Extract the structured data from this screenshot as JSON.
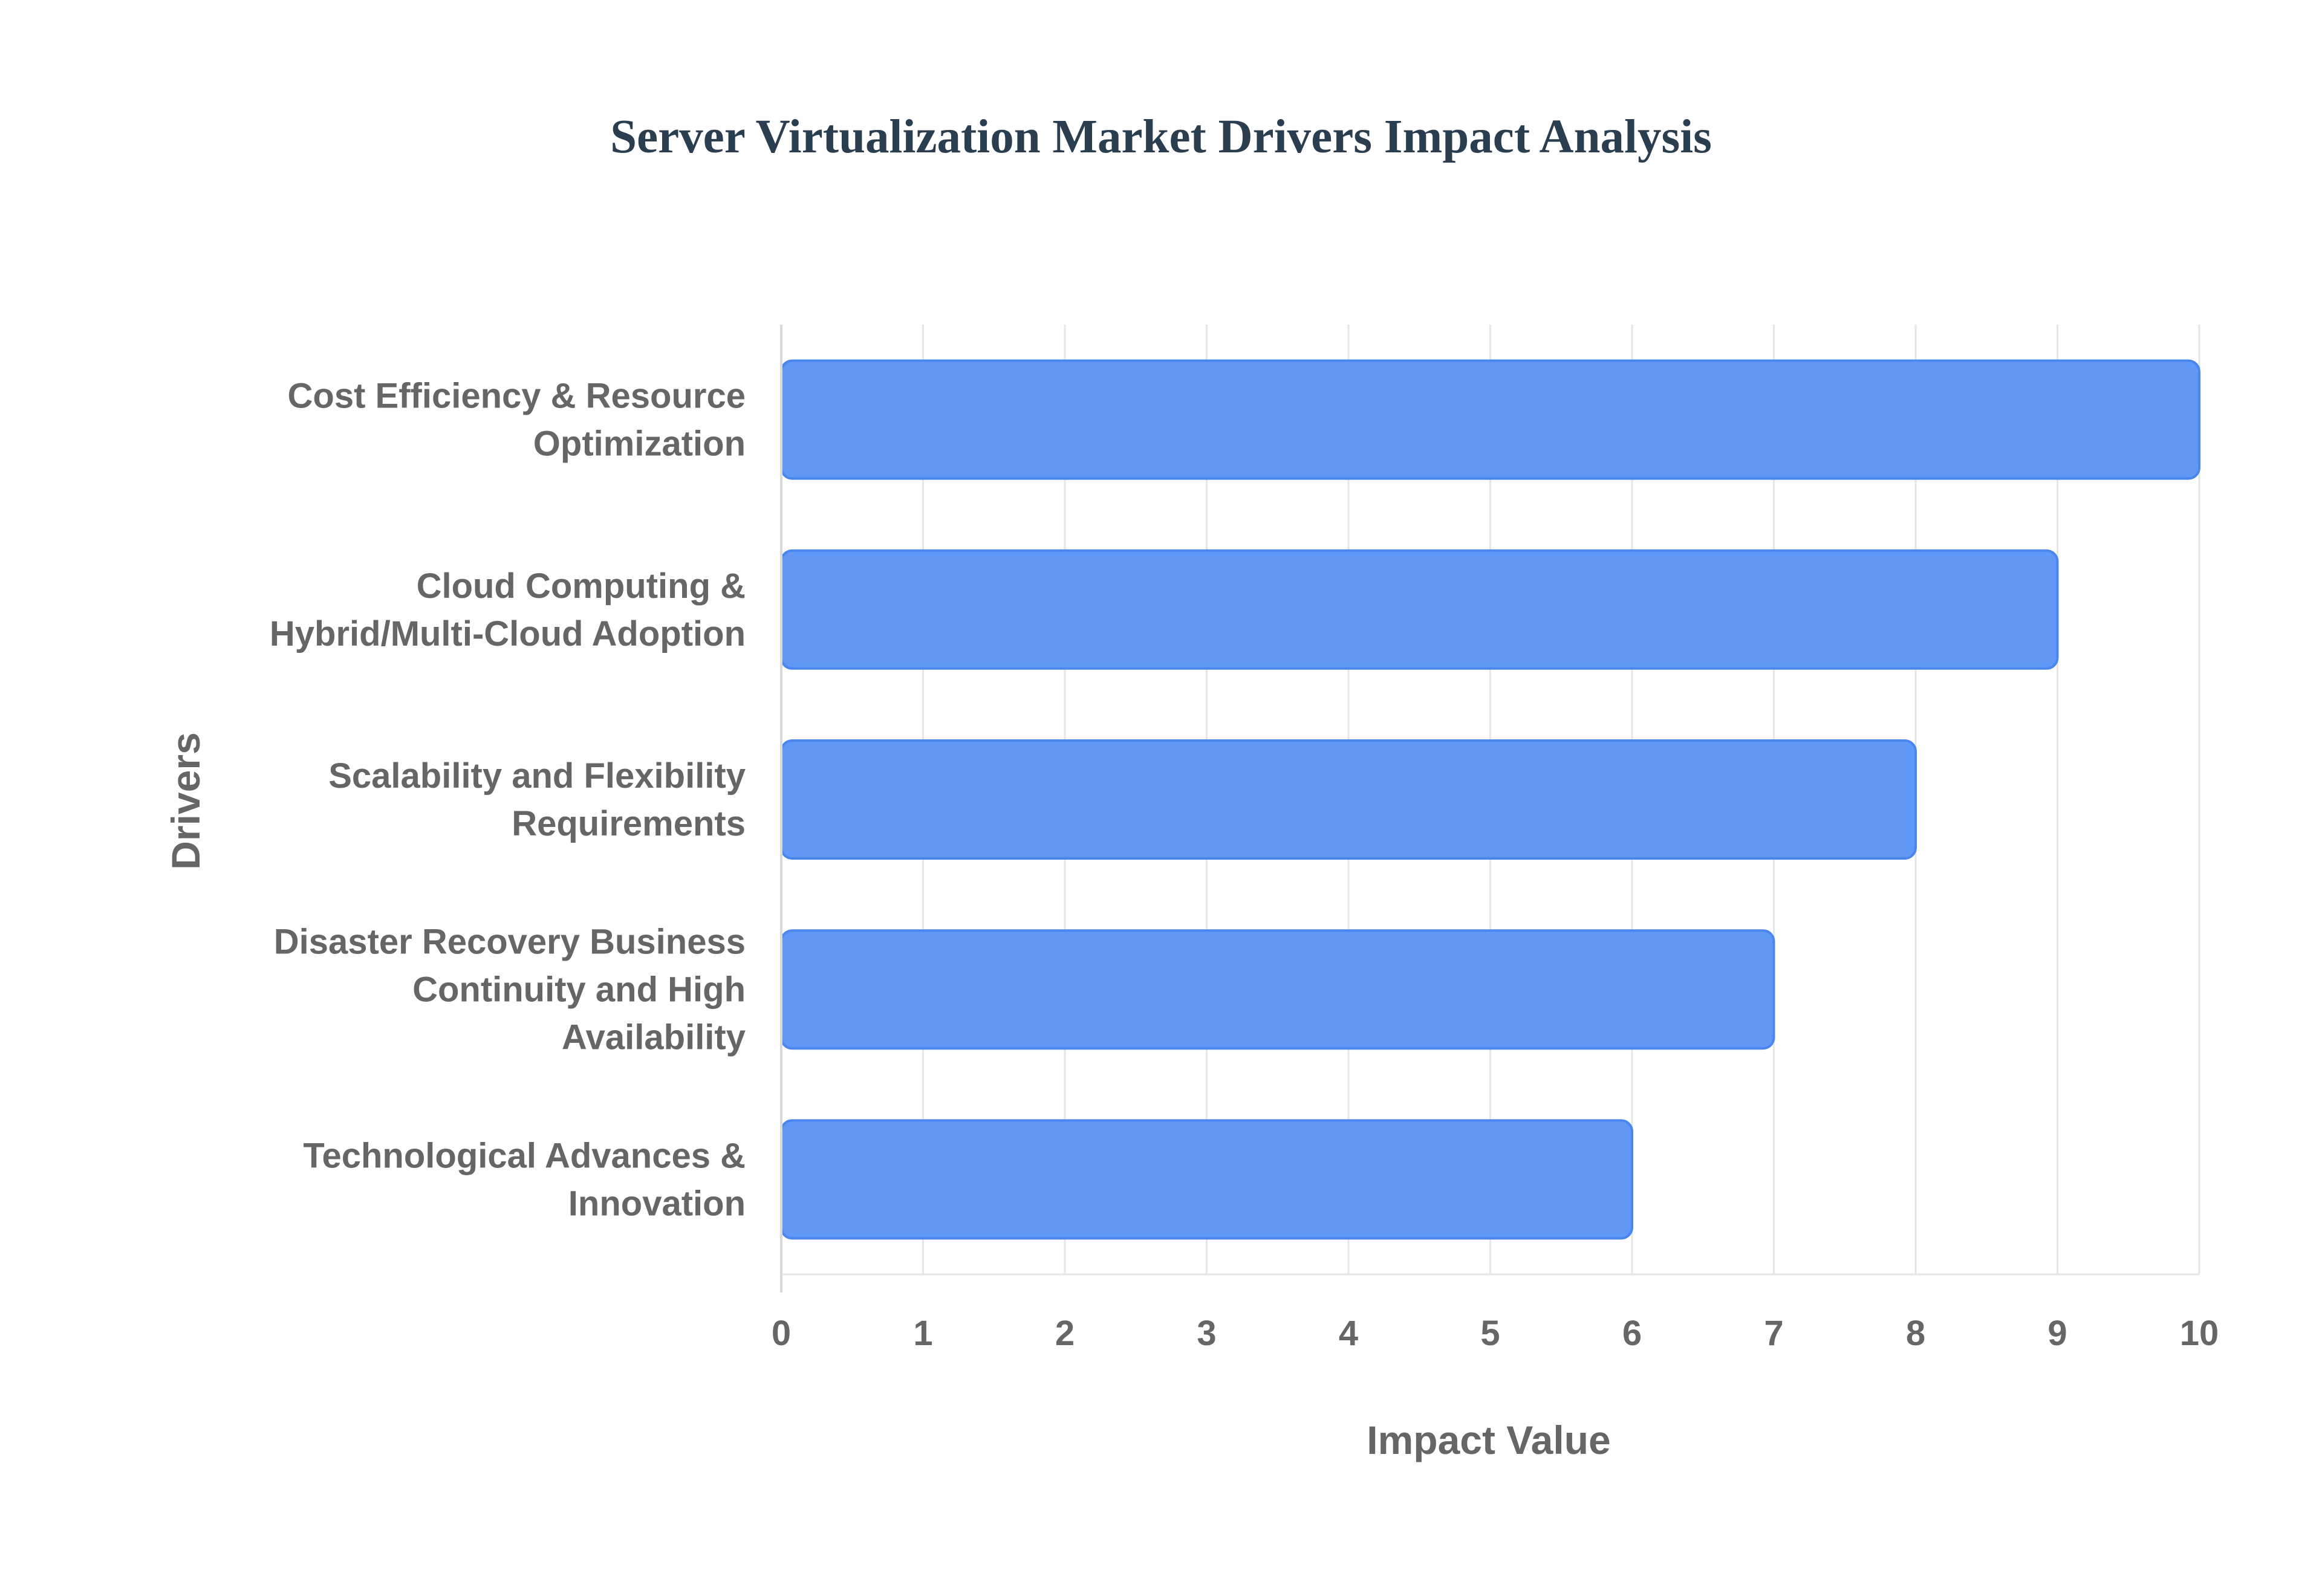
{
  "chart_data": {
    "type": "bar",
    "orientation": "horizontal",
    "title": "Server Virtualization Market Drivers Impact Analysis",
    "xlabel": "Impact Value",
    "ylabel": "Drivers",
    "xlim": [
      0,
      10
    ],
    "x_ticks": [
      "0",
      "1",
      "2",
      "3",
      "4",
      "5",
      "6",
      "7",
      "8",
      "9",
      "10"
    ],
    "grid": true,
    "legend": "none",
    "bar_color": "#6198f5",
    "bar_border_color": "#4a86ee",
    "categories": [
      [
        "Cost Efficiency & Resource",
        "Optimization"
      ],
      [
        "Cloud Computing &",
        "Hybrid/Multi-Cloud Adoption"
      ],
      [
        "Scalability and Flexibility",
        "Requirements"
      ],
      [
        "Disaster Recovery Business",
        "Continuity and High",
        "Availability"
      ],
      [
        "Technological Advances &",
        "Innovation"
      ]
    ],
    "values": [
      10,
      9,
      8,
      7,
      6
    ]
  }
}
